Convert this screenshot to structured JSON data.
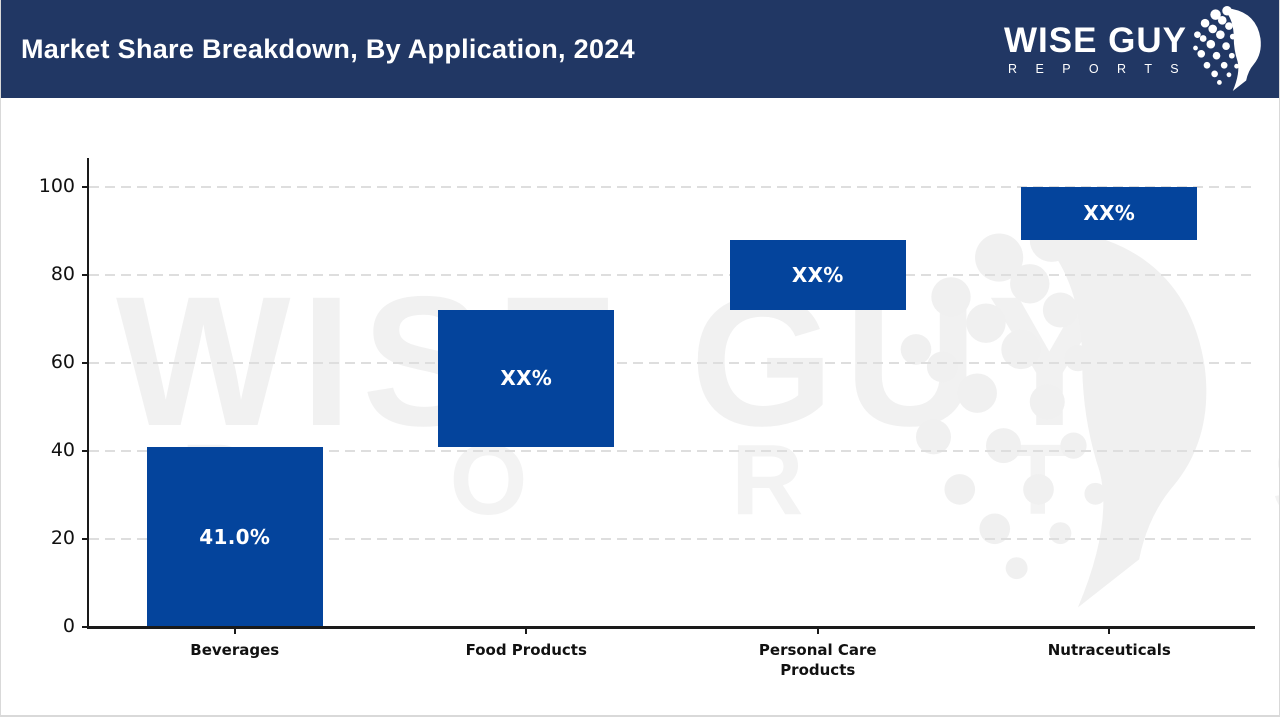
{
  "header": {
    "title": "Market Share Breakdown, By Application, 2024",
    "background_color": "#213764",
    "logo": {
      "line1": "WISE GUY",
      "line2": "R E P O R T S"
    }
  },
  "watermark": {
    "line1": "WISE GUY",
    "line2": "P O R T S"
  },
  "chart_data": {
    "type": "bar",
    "subtype": "waterfall",
    "title": "Market Share Breakdown, By Application, 2024",
    "categories": [
      "Beverages",
      "Food Products",
      "Personal Care Products",
      "Nutraceuticals"
    ],
    "bars": [
      {
        "category": "Beverages",
        "start": 0,
        "end": 41,
        "label": "41.0%"
      },
      {
        "category": "Food Products",
        "start": 41,
        "end": 72,
        "label": "XX%"
      },
      {
        "category": "Personal Care Products",
        "start": 72,
        "end": 88,
        "label": "XX%"
      },
      {
        "category": "Nutraceuticals",
        "start": 88,
        "end": 100,
        "label": "XX%"
      }
    ],
    "visible_values": {
      "Beverages": 41.0
    },
    "masked_label": "XX%",
    "bar_color": "#04449c",
    "bar_label_color": "#ffffff",
    "xlabel": "",
    "ylabel": "",
    "ylim": [
      0,
      107
    ],
    "yticks": [
      0,
      20,
      40,
      60,
      80,
      100
    ],
    "grid": "horizontal dashed",
    "legend": "none"
  }
}
